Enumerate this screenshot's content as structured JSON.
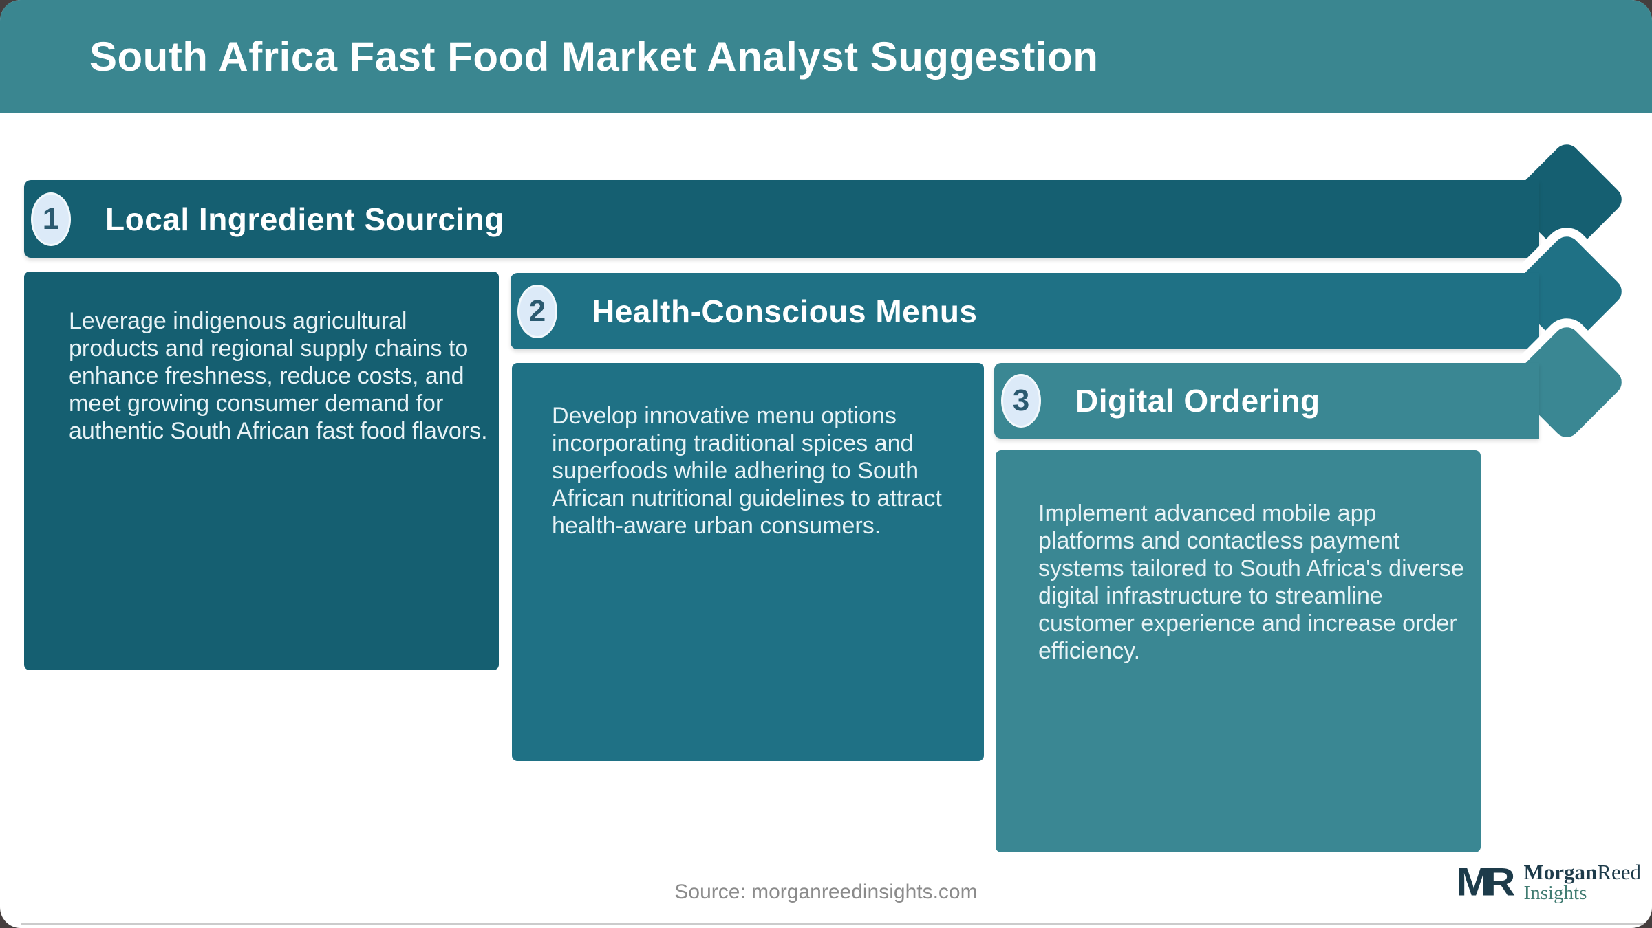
{
  "page": {
    "title": "South Africa Fast Food Market Analyst Suggestion",
    "source_text": "Source: morganreedinsights.com",
    "logo": {
      "monogram": "MR",
      "name_bold": "Morgan",
      "name_regular": "Reed",
      "subtitle": "Insights"
    }
  },
  "steps": [
    {
      "number": "1",
      "title": "Local Ingredient Sourcing",
      "description": "Leverage indigenous agricultural products and regional supply chains to enhance freshness, reduce costs, and meet growing consumer demand for authentic South African fast food flavors.",
      "color": "#155F71"
    },
    {
      "number": "2",
      "title": "Health-Conscious Menus",
      "description": "Develop innovative menu options incorporating traditional spices and superfoods while adhering to South African nutritional guidelines to attract health-aware urban consumers.",
      "color": "#1F7185"
    },
    {
      "number": "3",
      "title": "Digital Ordering",
      "description": "Implement advanced mobile app platforms and contactless payment systems tailored to South Africa's diverse digital infrastructure to streamline customer experience and increase order efficiency.",
      "color": "#3A8793"
    }
  ],
  "colors": {
    "header_teal": "#3A8690",
    "step1_teal": "#155F71",
    "step2_teal": "#1F7185",
    "step3_teal": "#3A8793",
    "badge_fill": "#DCEAF8",
    "badge_number": "#2B5A70",
    "body_text": "#E8F3F6",
    "source_gray": "#8B8B8B",
    "logo_navy": "#1D3B4A",
    "logo_teal": "#417C72",
    "divider_gray": "#CBCBCB",
    "outer_background": "#453E3E"
  }
}
